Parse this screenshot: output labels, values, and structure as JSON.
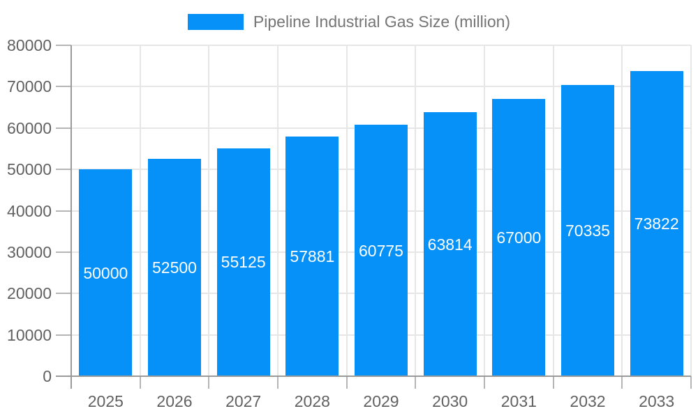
{
  "legend": {
    "items": [
      {
        "label": "Pipeline Industrial Gas Size (million)"
      }
    ]
  },
  "chart_data": {
    "type": "bar",
    "title": "",
    "xlabel": "",
    "ylabel": "",
    "categories": [
      "2025",
      "2026",
      "2027",
      "2028",
      "2029",
      "2030",
      "2031",
      "2032",
      "2033"
    ],
    "series": [
      {
        "name": "Pipeline Industrial Gas Size (million)",
        "values": [
          50000,
          52500,
          55125,
          57881,
          60775,
          63814,
          67000,
          70335,
          73822
        ]
      }
    ],
    "ylim": [
      0,
      80000
    ],
    "yticks": [
      0,
      10000,
      20000,
      30000,
      40000,
      50000,
      60000,
      70000,
      80000
    ],
    "grid": true,
    "legend_position": "top",
    "value_labels": "inside-center"
  },
  "style": {
    "bar_color": "#0591f8",
    "grid_color": "#e6e6e6",
    "axis_color": "#9a9a9a",
    "tick_color": "#b5b5b5",
    "axis_label_color": "#616161",
    "value_label_color": "#ffffff",
    "legend_text_color": "#757575",
    "background": "#ffffff"
  }
}
